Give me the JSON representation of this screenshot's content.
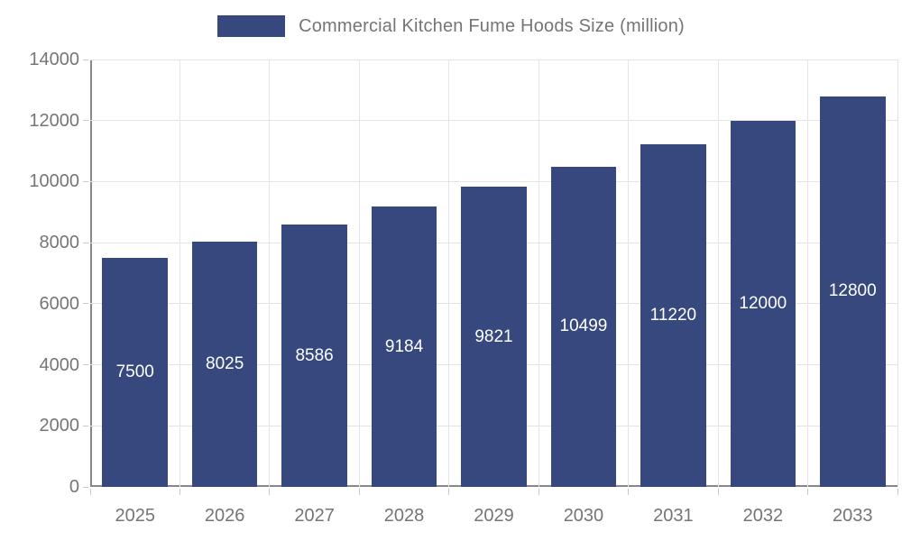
{
  "legend": {
    "label": "Commercial Kitchen Fume Hoods Size (million)"
  },
  "colors": {
    "bar": "#36487E",
    "axis_line": "#888888",
    "gridline": "#E4E4E4",
    "tick": "#C9C9C9",
    "axis_text": "#757575",
    "bar_label_text": "#FFFFFF",
    "background": "#FFFFFF"
  },
  "chart_data": {
    "type": "bar",
    "title": "Commercial Kitchen Fume Hoods Size (million)",
    "categories": [
      "2025",
      "2026",
      "2027",
      "2028",
      "2029",
      "2030",
      "2031",
      "2032",
      "2033"
    ],
    "values": [
      7500,
      8025,
      8586,
      9184,
      9821,
      10499,
      11220,
      12000,
      12800
    ],
    "xlabel": "",
    "ylabel": "",
    "ylim": [
      0,
      14000
    ],
    "ytick_step": 2000,
    "ytick_labels": [
      "0",
      "2000",
      "4000",
      "6000",
      "8000",
      "10000",
      "12000",
      "14000"
    ],
    "grid": true,
    "legend_position": "top",
    "bar_labels_shown": true,
    "bar_label_position": "center"
  }
}
